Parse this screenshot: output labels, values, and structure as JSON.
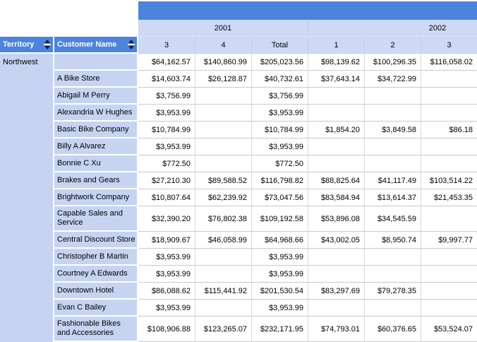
{
  "report": {
    "territory_header": "Territory",
    "customer_header": "Customer Name",
    "years": [
      {
        "label": "2001"
      },
      {
        "label": "2002"
      }
    ],
    "quarters": [
      "3",
      "4",
      "Total",
      "1",
      "2",
      "3"
    ],
    "territory": "Northwest",
    "icons": {
      "sort": "sort-updown"
    },
    "colors": {
      "header_blue": "#4c83dc",
      "light_blue": "#cdd9f5",
      "lavender": "#c6d4f2",
      "grid_line": "#c9c9c9",
      "sort_arrow": "#121f5c"
    },
    "rows": [
      {
        "customer": "",
        "values": [
          "$64,162.57",
          "$140,860.99",
          "$205,023.56",
          "$98,139.62",
          "$100,296.35",
          "$116,058.02"
        ]
      },
      {
        "customer": "A Bike Store",
        "values": [
          "$14,603.74",
          "$26,128.87",
          "$40,732.61",
          "$37,643.14",
          "$34,722.99",
          ""
        ]
      },
      {
        "customer": "Abigail M Perry",
        "values": [
          "$3,756.99",
          "",
          "$3,756.99",
          "",
          "",
          ""
        ]
      },
      {
        "customer": "Alexandria W Hughes",
        "values": [
          "$3,953.99",
          "",
          "$3,953.99",
          "",
          "",
          ""
        ]
      },
      {
        "customer": "Basic Bike Company",
        "values": [
          "$10,784.99",
          "",
          "$10,784.99",
          "$1,854.20",
          "$3,849.58",
          "$86.18"
        ]
      },
      {
        "customer": "Billy A Alvarez",
        "values": [
          "$3,953.99",
          "",
          "$3,953.99",
          "",
          "",
          ""
        ]
      },
      {
        "customer": "Bonnie C Xu",
        "values": [
          "$772.50",
          "",
          "$772.50",
          "",
          "",
          ""
        ]
      },
      {
        "customer": "Brakes and Gears",
        "values": [
          "$27,210.30",
          "$89,588.52",
          "$116,798.82",
          "$88,825.64",
          "$41,117.49",
          "$103,514.22"
        ]
      },
      {
        "customer": "Brightwork Company",
        "values": [
          "$10,807.64",
          "$62,239.92",
          "$73,047.56",
          "$83,584.94",
          "$13,614.37",
          "$21,453.35"
        ]
      },
      {
        "customer": "Capable Sales and Service",
        "values": [
          "$32,390.20",
          "$76,802.38",
          "$109,192.58",
          "$53,896.08",
          "$34,545.59",
          ""
        ]
      },
      {
        "customer": "Central Discount Store",
        "values": [
          "$18,909.67",
          "$46,058.99",
          "$64,968.66",
          "$43,002.05",
          "$8,950.74",
          "$9,997.77"
        ]
      },
      {
        "customer": "Christopher B Martin",
        "values": [
          "$3,953.99",
          "",
          "$3,953.99",
          "",
          "",
          ""
        ]
      },
      {
        "customer": "Courtney A Edwards",
        "values": [
          "$3,953.99",
          "",
          "$3,953.99",
          "",
          "",
          ""
        ]
      },
      {
        "customer": "Downtown Hotel",
        "values": [
          "$86,088.62",
          "$115,441.92",
          "$201,530.54",
          "$83,297.69",
          "$79,278.35",
          ""
        ]
      },
      {
        "customer": "Evan C Bailey",
        "values": [
          "$3,953.99",
          "",
          "$3,953.99",
          "",
          "",
          ""
        ]
      },
      {
        "customer": "Fashionable Bikes and Accessories",
        "values": [
          "$108,906.88",
          "$123,265.07",
          "$232,171.95",
          "$74,793.01",
          "$60,376.65",
          "$53,524.07"
        ]
      }
    ]
  }
}
